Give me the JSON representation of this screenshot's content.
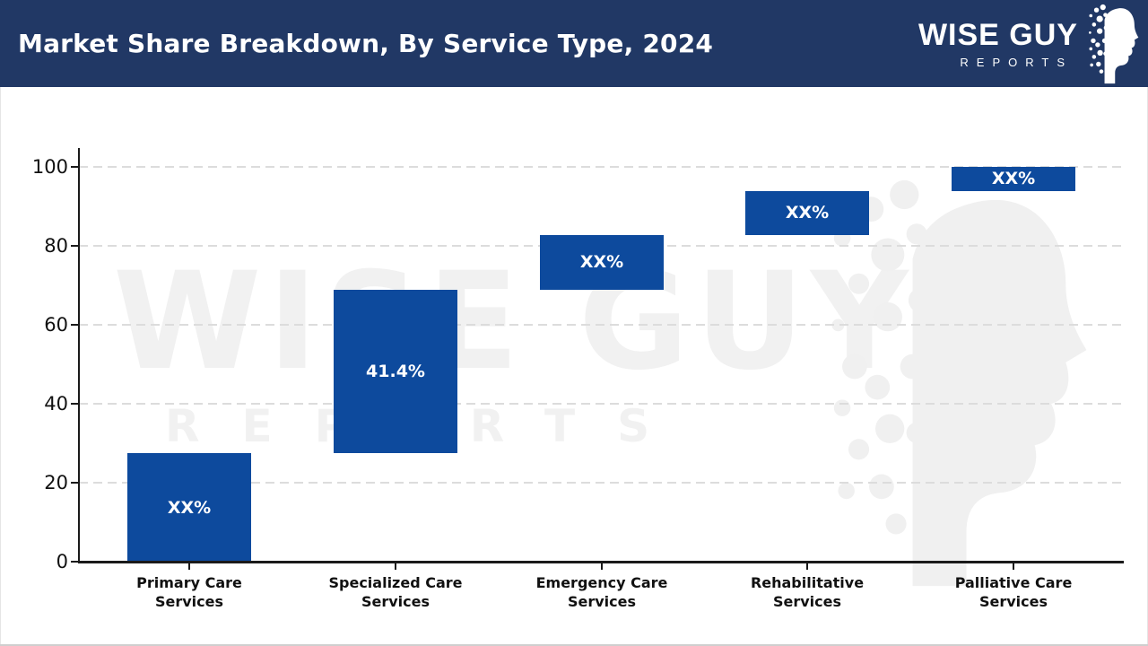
{
  "header": {
    "title": "Market Share Breakdown, By Service Type, 2024",
    "logo_line1": "WISE GUY",
    "logo_line2": "REPORTS"
  },
  "watermark": {
    "line1": "WISE GUY",
    "line2": "REPORTS"
  },
  "colors": {
    "header_bg": "#213865",
    "bar": "#0d4a9d",
    "grid": "#dcdcdc",
    "axis": "#1a1a1a",
    "watermark": "#f1f1f1"
  },
  "chart_data": {
    "type": "bar",
    "subtype": "waterfall",
    "title": "Market Share Breakdown, By Service Type, 2024",
    "categories": [
      "Primary Care Services",
      "Specialized Care Services",
      "Emergency Care Services",
      "Rehabilitative Services",
      "Palliative Care Services"
    ],
    "segments": [
      {
        "category": "Primary Care Services",
        "category_lines": [
          "Primary Care",
          "Services"
        ],
        "label": "XX%",
        "start": 0,
        "end": 27.5
      },
      {
        "category": "Specialized Care Services",
        "category_lines": [
          "Specialized Care",
          "Services"
        ],
        "label": "41.4%",
        "start": 27.5,
        "end": 68.9
      },
      {
        "category": "Emergency Care Services",
        "category_lines": [
          "Emergency Care",
          "Services"
        ],
        "label": "XX%",
        "start": 68.9,
        "end": 82.8
      },
      {
        "category": "Rehabilitative Services",
        "category_lines": [
          "Rehabilitative",
          "Services"
        ],
        "label": "XX%",
        "start": 82.8,
        "end": 93.9
      },
      {
        "category": "Palliative Care Services",
        "category_lines": [
          "Palliative Care",
          "Services"
        ],
        "label": "XX%",
        "start": 93.9,
        "end": 100
      }
    ],
    "y_axis": {
      "ticks": [
        0,
        20,
        40,
        60,
        80,
        100
      ],
      "range": [
        0,
        105
      ]
    },
    "xlabel": "",
    "ylabel": "",
    "grid": "dashed-horizontal",
    "legend": null
  }
}
